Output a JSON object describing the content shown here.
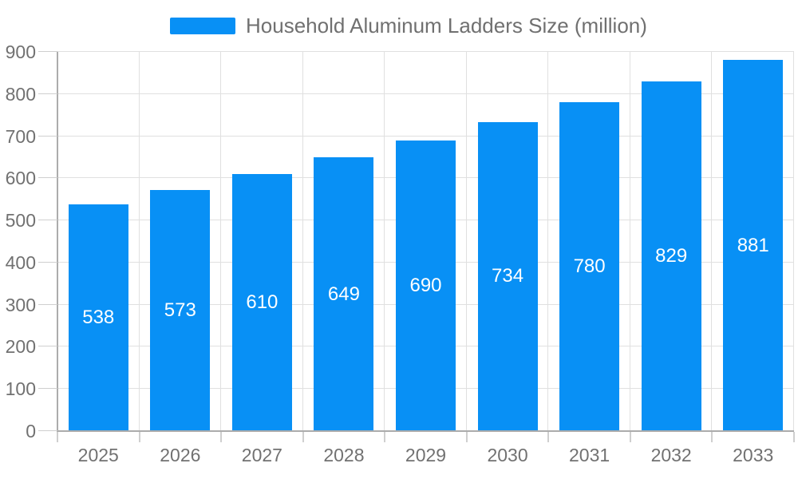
{
  "legend": {
    "label": "Household Aluminum Ladders Size (million)"
  },
  "colors": {
    "bar": "#0890F5",
    "value_label": "#FFFFFF",
    "axis_line": "#ACACAC",
    "grid_line": "#E0E0E0",
    "tick": "#CFCFCF",
    "axis_label": "#717171",
    "legend_text": "#707070"
  },
  "chart_data": {
    "type": "bar",
    "title": "Household Aluminum Ladders Size (million)",
    "series_name": "Household Aluminum Ladders Size (million)",
    "categories": [
      "2025",
      "2026",
      "2027",
      "2028",
      "2029",
      "2030",
      "2031",
      "2032",
      "2033"
    ],
    "values": [
      538,
      573,
      610,
      649,
      690,
      734,
      780,
      829,
      881
    ],
    "xlabel": "",
    "ylabel": "",
    "ylim": [
      0,
      900
    ],
    "ytick_step": 100,
    "y_tick_labels": [
      "0",
      "100",
      "200",
      "300",
      "400",
      "500",
      "600",
      "700",
      "800",
      "900"
    ],
    "grid": true,
    "legend_position": "top-center",
    "value_labels": "inside-middle"
  }
}
